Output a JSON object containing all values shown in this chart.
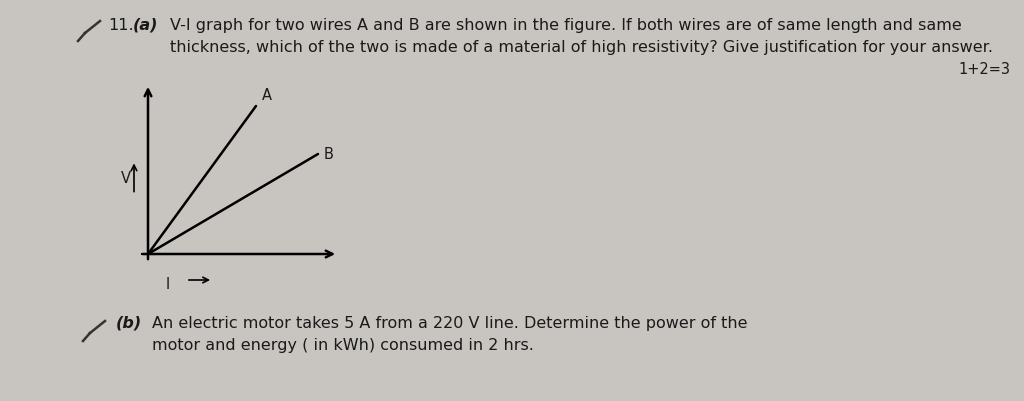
{
  "background_color": "#c8c5c0",
  "text_color": "#1a1a1a",
  "question_number": "11.",
  "part_a_label": "(a)",
  "part_a_line1": "V-I graph for two wires A and B are shown in the figure. If both wires are of same length and same",
  "part_a_line2": "thickness, which of the two is made of a material of high resistivity? Give justification for your answer.",
  "marks": "1+2=3",
  "part_b_label": "(b)",
  "part_b_line1": "An electric motor takes 5 A from a 220 V line. Determine the power of the",
  "part_b_line2": "motor and energy ( in kWh) consumed in 2 hrs.",
  "graph_v_label": "V",
  "graph_i_label": "I",
  "graph_a_label": "A",
  "graph_b_label": "B",
  "font_size_text": 11.5,
  "font_size_marks": 10.5,
  "font_size_graph": 10.5
}
